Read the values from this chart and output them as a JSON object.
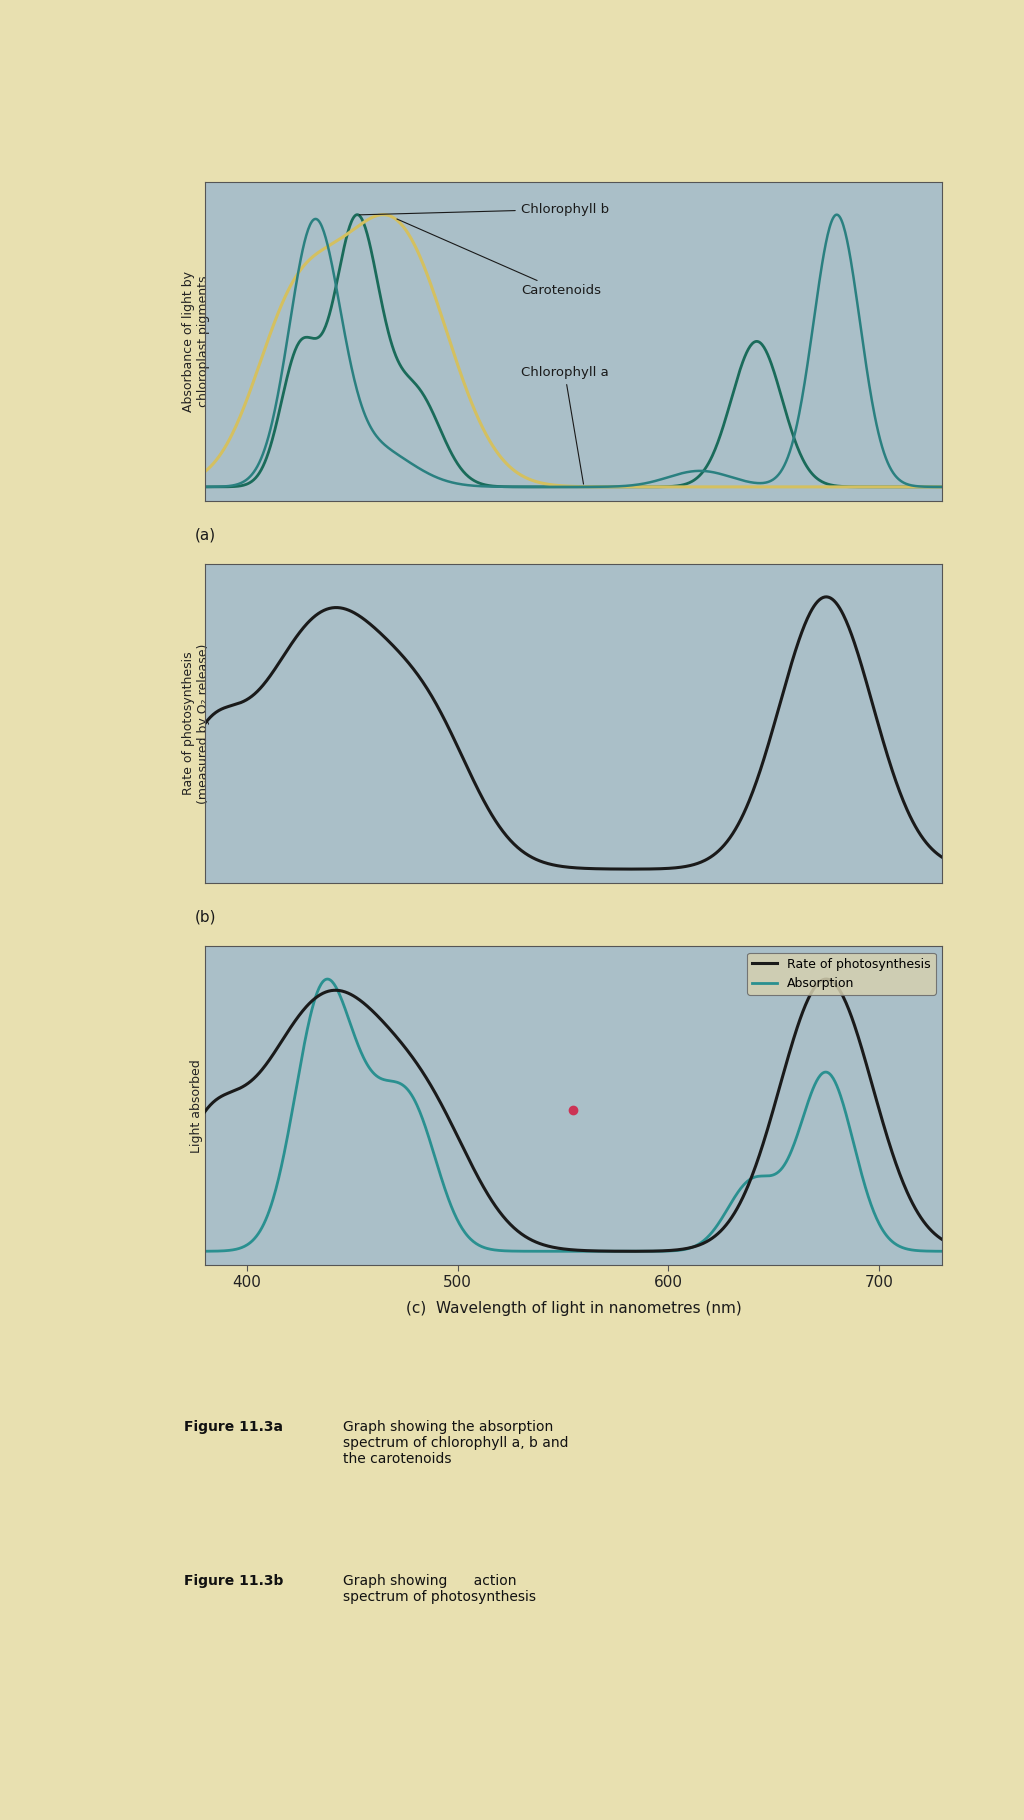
{
  "fig_width": 10.24,
  "fig_height": 18.2,
  "bg_color": "#e8e0b0",
  "plot_bg_color": "#aabfc8",
  "panel_a": {
    "ylabel": "Absorbance of light by\nchloroplast pigments",
    "label": "(a)",
    "chlorophyll_b_color": "#1a6b5a",
    "carotenoids_color": "#d4c060",
    "chlorophyll_a_color": "#2a8080",
    "legend_labels": [
      "Chlorophyll b",
      "Carotenoids",
      "Chlorophyll a"
    ]
  },
  "panel_b": {
    "ylabel": "Rate of photosynthesis\n(measured by O₂ release)",
    "label": "(b)",
    "line_color": "#1a1a1a"
  },
  "panel_c": {
    "ylabel": "Light absorbed",
    "xlabel": "(c)  Wavelength of light in nanometres (nm)",
    "label": "(c)",
    "rate_color": "#1a1a1a",
    "absorption_color": "#2a9090",
    "legend_labels": [
      "Rate of photosynthesis",
      "Absorption"
    ],
    "xticks": [
      400,
      500,
      600,
      700
    ]
  },
  "xmin": 380,
  "xmax": 730,
  "annotation_color": "#1a1a1a",
  "annotation_fontsize": 10
}
